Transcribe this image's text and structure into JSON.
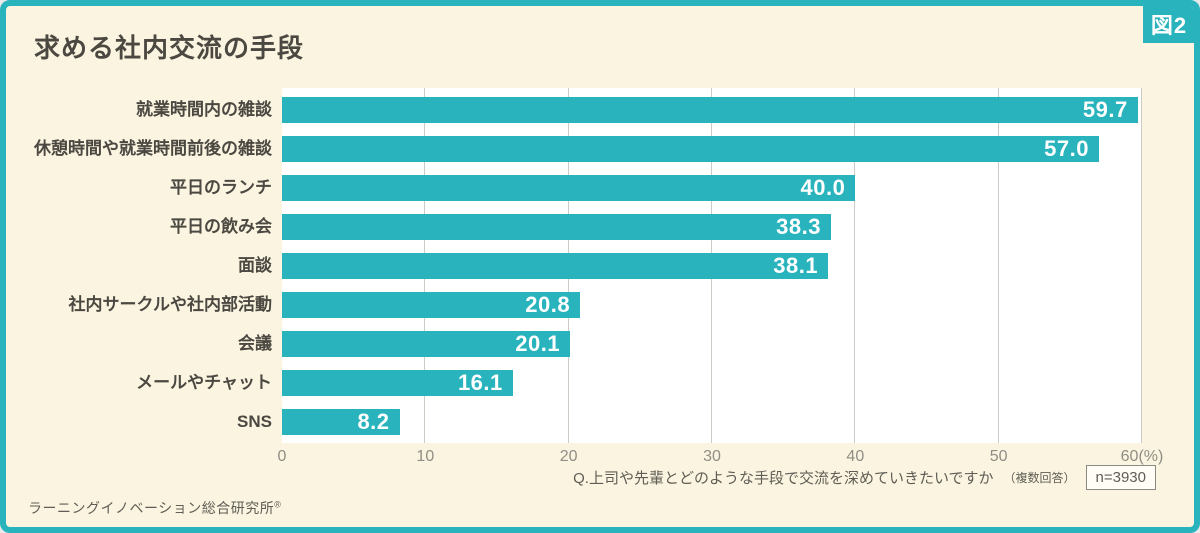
{
  "figure_tag": "図2",
  "title": "求める社内交流の手段",
  "chart_data": {
    "type": "bar",
    "orientation": "horizontal",
    "title": "求める社内交流の手段",
    "categories": [
      "就業時間内の雑談",
      "休憩時間や就業時間前後の雑談",
      "平日のランチ",
      "平日の飲み会",
      "面談",
      "社内サークルや社内部活動",
      "会議",
      "メールやチャット",
      "SNS"
    ],
    "values": [
      59.7,
      57.0,
      40.0,
      38.3,
      38.1,
      20.8,
      20.1,
      16.1,
      8.2
    ],
    "value_labels": [
      "59.7",
      "57.0",
      "40.0",
      "38.3",
      "38.1",
      "20.8",
      "20.1",
      "16.1",
      "8.2"
    ],
    "xlim": [
      0,
      60
    ],
    "x_ticks": [
      0,
      10,
      20,
      30,
      40,
      50,
      60
    ],
    "x_tick_labels": [
      "0",
      "10",
      "20",
      "30",
      "40",
      "50",
      "60(%)"
    ],
    "unit": "%",
    "grid": true,
    "legend": false,
    "bar_color": "#29b3bd",
    "value_label_color": "#ffffff"
  },
  "footer": {
    "question": "Q.上司や先輩とどのような手段で交流を深めていきたいですか",
    "question_note": "（複数回答）",
    "sample_size": "n=3930",
    "source": "ラーニングイノベーション総合研究所",
    "registered_mark": "®"
  },
  "colors": {
    "accent_teal": "#29b3bd",
    "background_cream": "#faf4e0",
    "plot_background": "#ffffff",
    "text_dark": "#4b4841",
    "axis_text": "#8f8e85",
    "gridline": "#ccccc6"
  }
}
